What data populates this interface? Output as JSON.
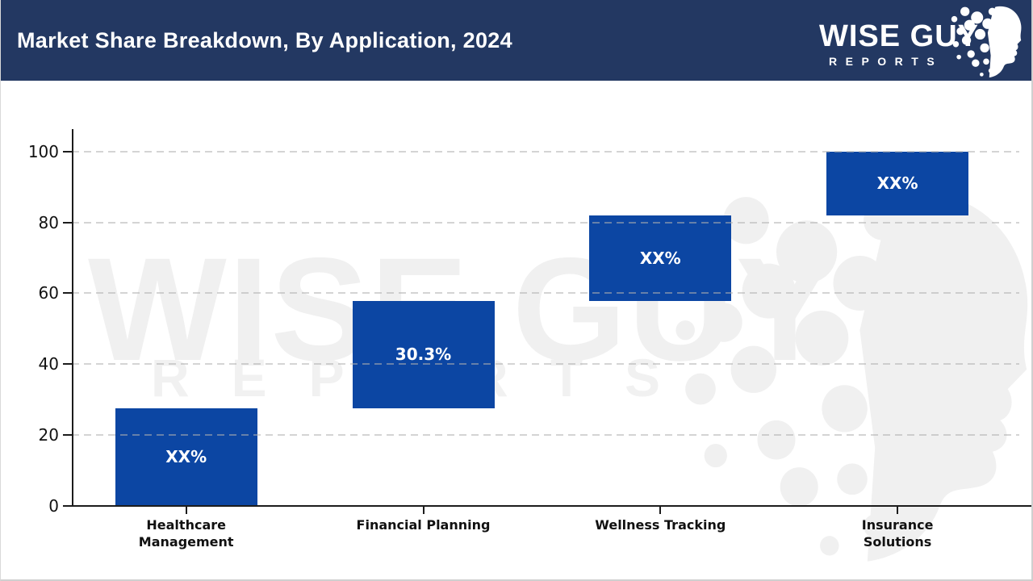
{
  "header": {
    "title": "Market Share Breakdown, By Application, 2024",
    "bg_color": "#233862",
    "logo": {
      "line1": "WISE GUY",
      "line2": "REPORTS"
    }
  },
  "watermark": {
    "line1": "WISE GUY",
    "line2": "REPORTS"
  },
  "chart_data": {
    "type": "bar",
    "subtype": "floating-waterfall-segments",
    "title": "Market Share Breakdown, By Application, 2024",
    "categories": [
      "Healthcare\nManagement",
      "Financial Planning",
      "Wellness Tracking",
      "Insurance\nSolutions"
    ],
    "series": [
      {
        "name": "Market Share (%)",
        "segments": [
          {
            "category": "Healthcare Management",
            "start": 0,
            "end": 27.5,
            "label": "XX%"
          },
          {
            "category": "Financial Planning",
            "start": 27.5,
            "end": 57.8,
            "label": "30.3%"
          },
          {
            "category": "Wellness Tracking",
            "start": 57.8,
            "end": 82,
            "label": "XX%"
          },
          {
            "category": "Insurance Solutions",
            "start": 82,
            "end": 100,
            "label": "XX%"
          }
        ]
      }
    ],
    "ylim": [
      0,
      100
    ],
    "yticks": [
      0,
      20,
      40,
      60,
      80,
      100
    ],
    "grid": "horizontal-dashed",
    "legend": "none",
    "bar_color": "#0c46a3",
    "bar_label_color": "#ffffff",
    "axis_color": "#1c1c1c"
  }
}
